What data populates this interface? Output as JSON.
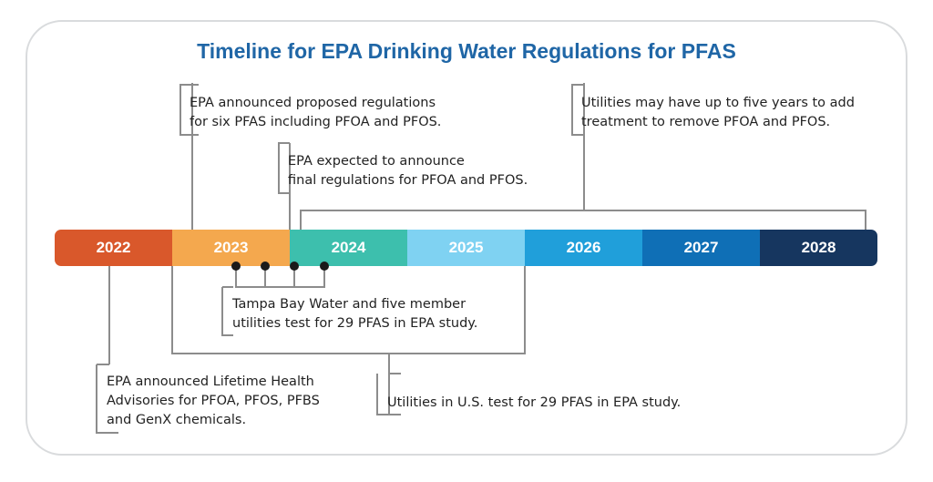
{
  "title": "Timeline for EPA Drinking Water Regulations for PFAS",
  "years": [
    {
      "label": "2022",
      "color": "#d9582b"
    },
    {
      "label": "2023",
      "color": "#f4a84e"
    },
    {
      "label": "2024",
      "color": "#3dbfad"
    },
    {
      "label": "2025",
      "color": "#7fd2f2"
    },
    {
      "label": "2026",
      "color": "#209fda"
    },
    {
      "label": "2027",
      "color": "#0f6fb6"
    },
    {
      "label": "2028",
      "color": "#16365f"
    }
  ],
  "notes": {
    "proposed": {
      "line1": "EPA announced proposed regulations",
      "line2": "for six PFAS including PFOA and PFOS."
    },
    "treatment": {
      "line1": "Utilities may have up to five years to add",
      "line2": "treatment to remove PFOA and PFOS."
    },
    "final": {
      "line1": "EPA expected to announce",
      "line2": "final regulations for PFOA and PFOS."
    },
    "tampa": {
      "line1": "Tampa Bay Water and five member",
      "line2": "utilities test for 29 PFAS in EPA study."
    },
    "advisories": {
      "line1": "EPA announced Lifetime Health",
      "line2": "Advisories for PFOA, PFOS, PFBS",
      "line3": "and GenX chemicals."
    },
    "us_test": {
      "line1": "Utilities in U.S. test for 29 PFAS in EPA study."
    }
  },
  "colors": {
    "title": "#1f66a6",
    "connector": "#8c8c8c",
    "dot": "#1a1a1a",
    "border": "#d9dbdd"
  }
}
